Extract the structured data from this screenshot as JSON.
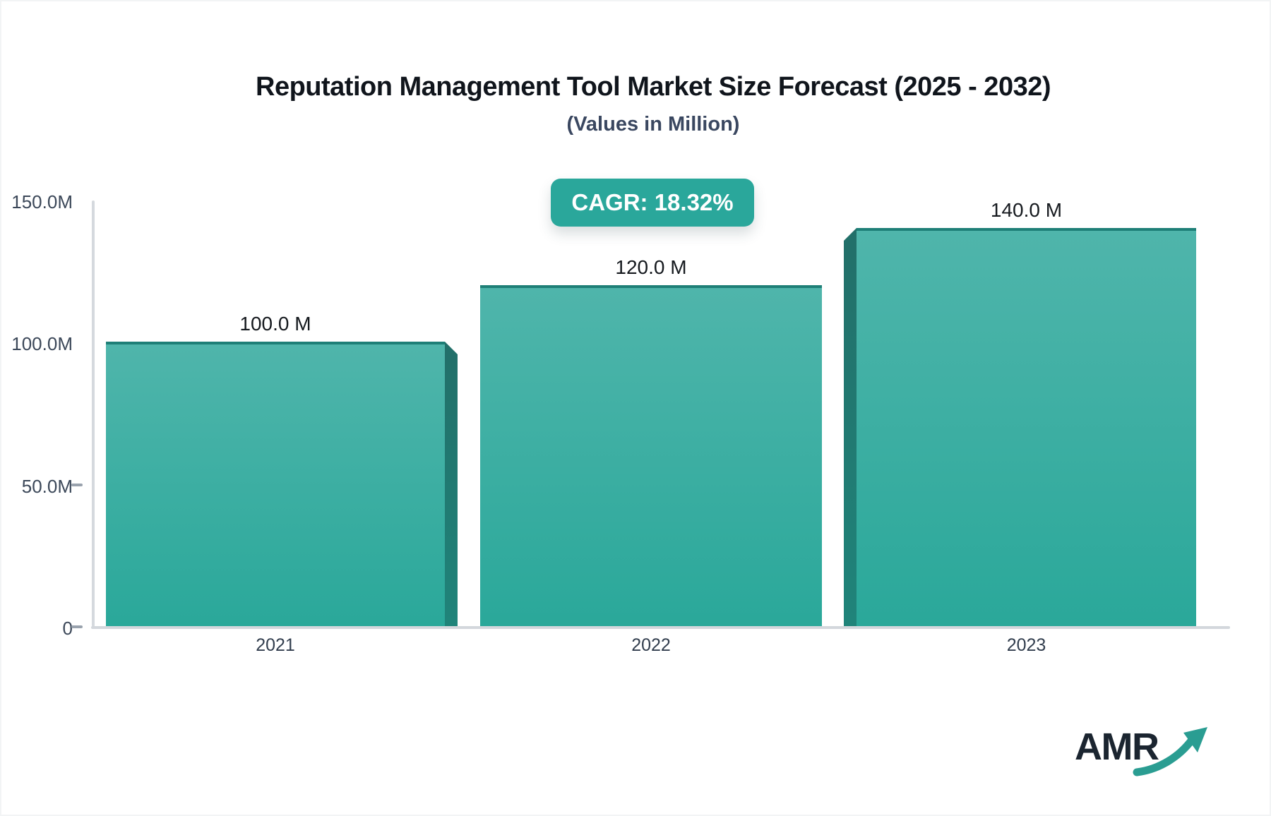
{
  "header": {
    "title": "Reputation Management Tool Market Size Forecast (2025 - 2032)",
    "subtitle": "(Values in Million)",
    "cagr_label": "CAGR: 18.32%"
  },
  "chart_data": {
    "type": "bar",
    "title": "Reputation Management Tool Market Size Forecast (2025 - 2032)",
    "subtitle": "(Values in Million)",
    "cagr": "18.32%",
    "categories": [
      "2021",
      "2022",
      "2023"
    ],
    "values": [
      100,
      120,
      140
    ],
    "value_labels": [
      "100.0 M",
      "120.0 M",
      "140.0 M"
    ],
    "ylim": [
      0,
      150
    ],
    "yticks": [
      {
        "value": 150,
        "label": "150.0M",
        "dash": false
      },
      {
        "value": 100,
        "label": "100.0M",
        "dash": false
      },
      {
        "value": 50,
        "label": "50.0M",
        "dash": true
      },
      {
        "value": 0,
        "label": "0",
        "dash": true
      }
    ],
    "grid": false,
    "legend": false,
    "bar_color_top": "#4fb5ab",
    "bar_color_bottom": "#2aa89a",
    "bar_side_color": "#1e7a72"
  },
  "colors": {
    "accent_teal": "#2aa79b",
    "axis_line": "#d5d9de",
    "tick_mark": "#99a2ad"
  },
  "logo": {
    "text": "AMR",
    "arrow_color": "#2a9d92"
  }
}
